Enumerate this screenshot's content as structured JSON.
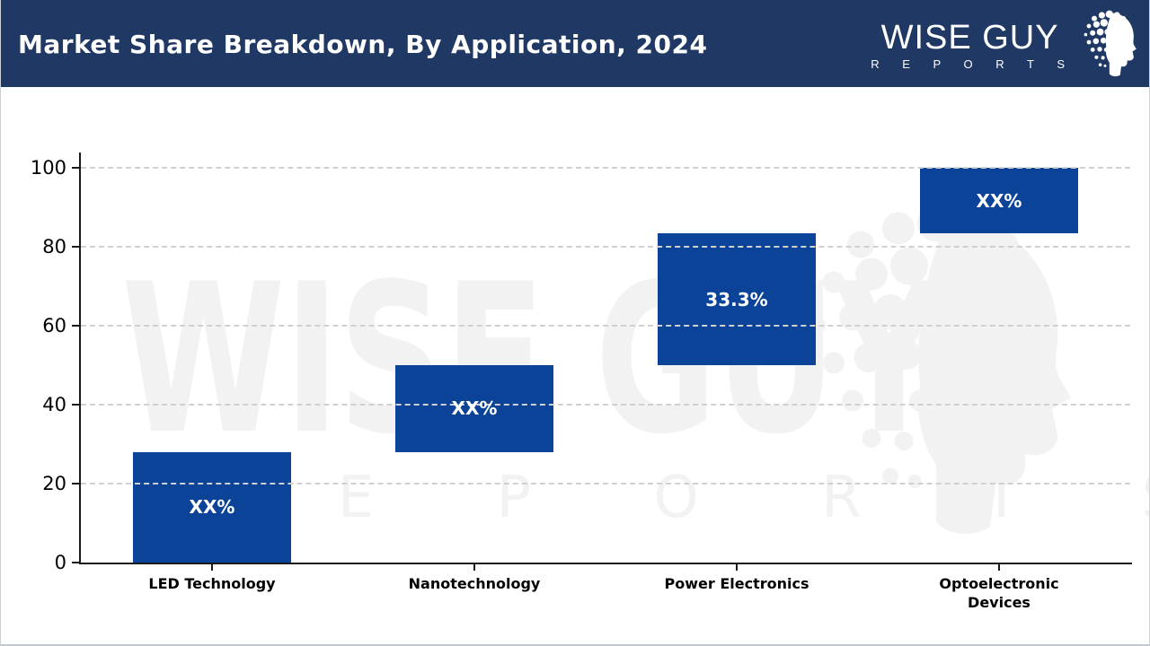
{
  "header": {
    "title": "Market Share Breakdown, By Application, 2024",
    "logo": {
      "line1": "WISE GUY",
      "line2": "R E P O R T S"
    }
  },
  "watermark": {
    "line1": "WISE GUY",
    "line2": "R E P O R T S"
  },
  "chart_data": {
    "type": "bar",
    "subtype": "floating-waterfall",
    "title": "Market Share Breakdown, By Application, 2024",
    "categories": [
      "LED Technology",
      "Nanotechnology",
      "Power Electronics",
      "Optoelectronic Devices"
    ],
    "segments": [
      {
        "category": "LED Technology",
        "start": 0,
        "end": 28,
        "label": "XX%"
      },
      {
        "category": "Nanotechnology",
        "start": 28,
        "end": 50,
        "label": "XX%"
      },
      {
        "category": "Power Electronics",
        "start": 50,
        "end": 83.3,
        "label": "33.3%"
      },
      {
        "category": "Optoelectronic Devices",
        "start": 83.3,
        "end": 100,
        "label": "XX%"
      }
    ],
    "xlabel": "",
    "ylabel": "",
    "ylim": [
      0,
      100
    ],
    "yticks": [
      0,
      20,
      40,
      60,
      80,
      100
    ],
    "grid": "horizontal dashed, drawn above bars",
    "legend": "none",
    "bar_color": "#0b4399",
    "colors": {
      "header_bg": "#1f3864",
      "grid": "#d0d0d0",
      "watermark": "#f2f2f2",
      "axis": "#1a1a1a"
    }
  }
}
